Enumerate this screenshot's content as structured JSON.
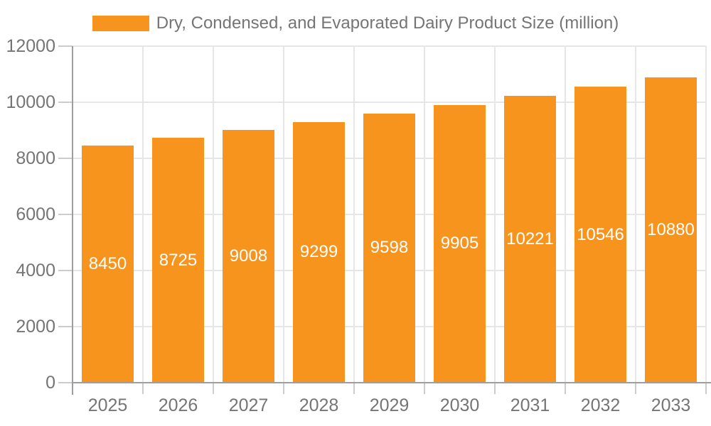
{
  "chart_data": {
    "type": "bar",
    "title": "Dry, Condensed, and Evaporated Dairy Product Size (million)",
    "categories": [
      "2025",
      "2026",
      "2027",
      "2028",
      "2029",
      "2030",
      "2031",
      "2032",
      "2033"
    ],
    "values": [
      8450,
      8725,
      9008,
      9299,
      9598,
      9905,
      10221,
      10546,
      10880
    ],
    "xlabel": "",
    "ylabel": "",
    "ylim": [
      0,
      12000
    ],
    "yticks": [
      0,
      2000,
      4000,
      6000,
      8000,
      10000,
      12000
    ],
    "grid": true,
    "legend_position": "top",
    "value_labels": "inside-center",
    "colors": {
      "bar": "#F7941E",
      "bar_label": "#FFFFFF",
      "axis_text": "#757575",
      "axis_line": "#9E9E9E",
      "grid_line": "#E6E6E6",
      "tick_line": "#CCCCCC",
      "background": "#FFFFFF"
    }
  }
}
